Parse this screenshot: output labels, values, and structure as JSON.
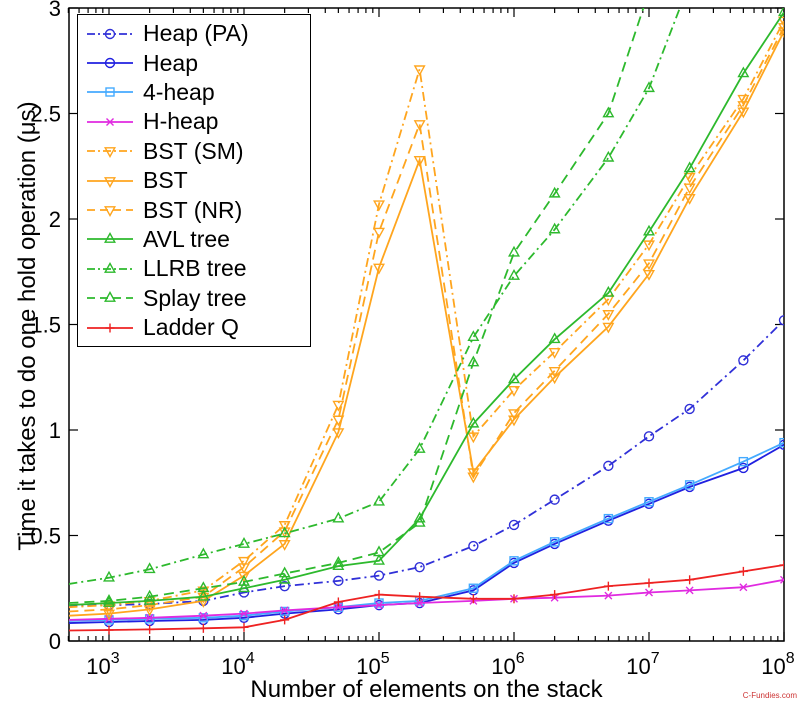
{
  "figure": {
    "watermark": "C-Fundies.com"
  },
  "chart_data": {
    "type": "line",
    "xscale": "log",
    "xlim": [
      500,
      100000000
    ],
    "ylim": [
      0,
      3
    ],
    "grid": false,
    "legend_position": "top-left",
    "xlabel": "Number of elements on the stack",
    "ylabel": "Time it takes to do one hold operation (μs)",
    "x_tick_exponents": [
      3,
      4,
      5,
      6,
      7,
      8
    ],
    "x_tick_base": "10",
    "y_ticks": [
      0,
      0.5,
      1,
      1.5,
      2,
      2.5,
      3
    ],
    "y_tick_labels": [
      "0",
      "0.5",
      "1",
      "1.5",
      "2",
      "2.5",
      "3"
    ],
    "x": [
      500,
      1000,
      2000,
      5000,
      10000,
      20000,
      50000,
      100000,
      200000,
      500000,
      1000000,
      2000000,
      5000000,
      10000000,
      20000000,
      50000000,
      100000000
    ],
    "series": [
      {
        "name": "heap-pa",
        "label": "Heap (PA)",
        "color": "#3030d8",
        "dash": "dashdot",
        "marker": "circle",
        "values": [
          0.165,
          0.17,
          0.175,
          0.19,
          0.23,
          0.26,
          0.285,
          0.31,
          0.35,
          0.45,
          0.55,
          0.67,
          0.83,
          0.97,
          1.1,
          1.33,
          1.52
        ]
      },
      {
        "name": "heap",
        "label": "Heap",
        "color": "#2020e0",
        "dash": "solid",
        "marker": "circle",
        "values": [
          0.085,
          0.09,
          0.095,
          0.1,
          0.11,
          0.13,
          0.15,
          0.17,
          0.18,
          0.24,
          0.37,
          0.46,
          0.57,
          0.65,
          0.73,
          0.82,
          0.93
        ]
      },
      {
        "name": "4-heap",
        "label": "4-heap",
        "color": "#44aaff",
        "dash": "solid",
        "marker": "square",
        "values": [
          0.095,
          0.1,
          0.105,
          0.11,
          0.12,
          0.14,
          0.16,
          0.18,
          0.19,
          0.25,
          0.38,
          0.47,
          0.58,
          0.66,
          0.74,
          0.85,
          0.94
        ]
      },
      {
        "name": "h-heap",
        "label": "H-heap",
        "color": "#e02ae0",
        "dash": "solid",
        "marker": "x",
        "values": [
          0.1,
          0.105,
          0.11,
          0.12,
          0.13,
          0.145,
          0.16,
          0.17,
          0.18,
          0.19,
          0.2,
          0.205,
          0.215,
          0.23,
          0.24,
          0.255,
          0.29
        ]
      },
      {
        "name": "bst-sm",
        "label": "BST (SM)",
        "color": "#ffa51e",
        "dash": "dashdot",
        "marker": "tri-down",
        "values": [
          0.16,
          0.17,
          0.19,
          0.24,
          0.38,
          0.55,
          1.12,
          2.07,
          2.71,
          0.97,
          1.19,
          1.37,
          1.62,
          1.88,
          2.2,
          2.57,
          2.94
        ]
      },
      {
        "name": "bst",
        "label": "BST",
        "color": "#ffa51e",
        "dash": "solid",
        "marker": "tri-down",
        "values": [
          0.12,
          0.13,
          0.15,
          0.19,
          0.31,
          0.46,
          0.99,
          1.77,
          2.28,
          0.8,
          1.05,
          1.25,
          1.49,
          1.74,
          2.1,
          2.51,
          2.89
        ]
      },
      {
        "name": "bst-nr",
        "label": "BST (NR)",
        "color": "#ffa51e",
        "dash": "dash",
        "marker": "tri-down",
        "values": [
          0.14,
          0.15,
          0.17,
          0.21,
          0.35,
          0.52,
          1.05,
          1.94,
          2.45,
          0.78,
          1.08,
          1.28,
          1.55,
          1.79,
          2.15,
          2.54,
          2.91
        ]
      },
      {
        "name": "avl-tree",
        "label": "AVL tree",
        "color": "#2db92d",
        "dash": "solid",
        "marker": "tri-up",
        "values": [
          0.17,
          0.18,
          0.19,
          0.21,
          0.25,
          0.29,
          0.355,
          0.38,
          0.58,
          1.03,
          1.24,
          1.43,
          1.65,
          1.94,
          2.24,
          2.69,
          2.98
        ]
      },
      {
        "name": "llrb-tree",
        "label": "LLRB tree",
        "color": "#2db92d",
        "dash": "dashdot",
        "marker": "tri-up",
        "values": [
          0.27,
          0.3,
          0.34,
          0.41,
          0.46,
          0.51,
          0.58,
          0.66,
          0.91,
          1.44,
          1.73,
          1.95,
          2.29,
          2.62,
          3.12,
          null,
          null
        ]
      },
      {
        "name": "splay-tree",
        "label": "Splay tree",
        "color": "#2db92d",
        "dash": "dash",
        "marker": "tri-up",
        "values": [
          0.18,
          0.19,
          0.21,
          0.25,
          0.28,
          0.32,
          0.37,
          0.42,
          0.56,
          1.32,
          1.84,
          2.12,
          2.5,
          3.08,
          null,
          null,
          null
        ]
      },
      {
        "name": "ladder-q",
        "label": "Ladder Q",
        "color": "#ee2222",
        "dash": "solid",
        "marker": "plus",
        "values": [
          0.05,
          0.052,
          0.055,
          0.06,
          0.065,
          0.1,
          0.185,
          0.22,
          0.21,
          0.2,
          0.2,
          0.22,
          0.26,
          0.275,
          0.29,
          0.33,
          0.36
        ]
      }
    ]
  }
}
